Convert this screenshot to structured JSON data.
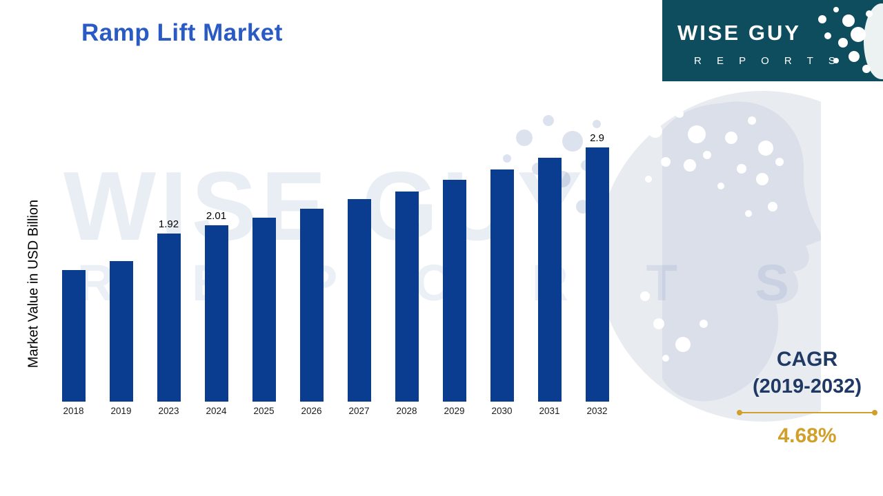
{
  "page": {
    "title": "Ramp Lift Market"
  },
  "logo": {
    "line1": "WISE GUY",
    "line2": "R E P O R T S"
  },
  "watermark": {
    "line1": "WISE GUY",
    "line2": "R E P O R T S"
  },
  "chart_data": {
    "type": "bar",
    "title": "Ramp Lift Market",
    "xlabel": "",
    "ylabel": "Market Value in USD Billion",
    "categories": [
      "2018",
      "2019",
      "2023",
      "2024",
      "2025",
      "2026",
      "2027",
      "2028",
      "2029",
      "2030",
      "2031",
      "2032"
    ],
    "values": [
      1.5,
      1.6,
      1.92,
      2.01,
      2.1,
      2.2,
      2.31,
      2.4,
      2.53,
      2.65,
      2.78,
      2.9
    ],
    "bar_labels": [
      "",
      "",
      "1.92",
      "2.01",
      "",
      "",
      "",
      "",
      "",
      "",
      "",
      "2.9"
    ],
    "ylim": [
      0,
      3.3
    ],
    "grid": false,
    "legend": false,
    "bar_color": "#0a3d8f"
  },
  "cagr": {
    "label": "CAGR",
    "range": "(2019-2032)",
    "value": "4.68%"
  },
  "colors": {
    "title_blue": "#2a5bc4",
    "bar_blue": "#0a3d8f",
    "teal": "#0d4d5e",
    "navy": "#1f3864",
    "gold": "#d1a02a",
    "circle_gray": "#e8ebf0"
  }
}
